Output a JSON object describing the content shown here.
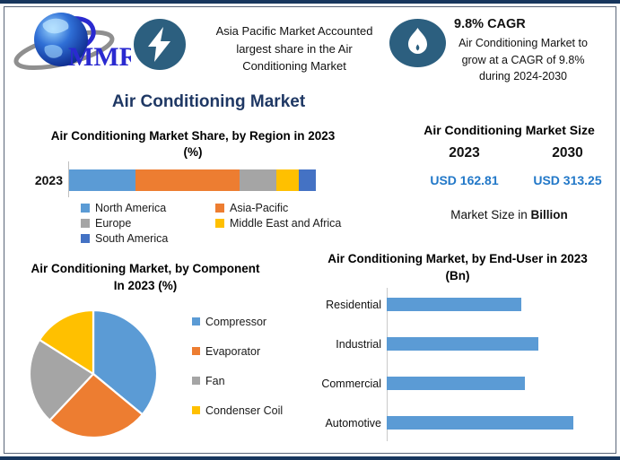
{
  "colors": {
    "border_navy": "#17365D",
    "title_navy": "#1F3864",
    "icon_blue": "#2C5F7F",
    "value_blue": "#2278C8",
    "bar_blue": "#5B9BD5"
  },
  "header": {
    "logo_text": "MMR",
    "asia_note_lines": [
      "Asia Pacific Market Accounted",
      "largest share in the Air",
      "Conditioning Market"
    ],
    "cagr_title": "9.8% CAGR",
    "cagr_lines": [
      "Air Conditioning Market to",
      "grow at a CAGR of 9.8%",
      "during 2024-2030"
    ]
  },
  "main_title": "Air Conditioning Market",
  "market_size": {
    "title": "Air Conditioning Market Size",
    "columns": [
      {
        "year": "2023",
        "value": "USD 162.81"
      },
      {
        "year": "2030",
        "value": "USD 313.25"
      }
    ],
    "note_normal": "Market Size in",
    "note_bold": "Billion"
  },
  "chart_data": [
    {
      "type": "bar",
      "variant": "stacked-horizontal",
      "title": "Air Conditioning Market Share, by Region in 2023 (%)",
      "categories": [
        "2023"
      ],
      "unit": "%",
      "legend_position": "bottom",
      "series": [
        {
          "name": "North America",
          "color": "#5B9BD5",
          "values": [
            27
          ]
        },
        {
          "name": "Asia-Pacific",
          "color": "#ED7D31",
          "values": [
            42
          ]
        },
        {
          "name": "Europe",
          "color": "#A5A5A5",
          "values": [
            15
          ]
        },
        {
          "name": "Middle East and Africa",
          "color": "#FFC000",
          "values": [
            9
          ]
        },
        {
          "name": "South America",
          "color": "#4472C4",
          "values": [
            7
          ]
        }
      ]
    },
    {
      "type": "pie",
      "title": "Air Conditioning Market, by Component In 2023 (%)",
      "labels": [
        "Compressor",
        "Evaporator",
        "Fan",
        "Condenser Coil"
      ],
      "values": [
        36,
        26,
        22,
        16
      ],
      "colors": [
        "#5B9BD5",
        "#ED7D31",
        "#A5A5A5",
        "#FFC000"
      ],
      "legend_position": "right",
      "start_angle_deg": 0,
      "direction": "clockwise"
    },
    {
      "type": "bar",
      "variant": "horizontal",
      "title": "Air Conditioning Market, by End-User in 2023 (Bn)",
      "categories": [
        "Residential",
        "Industrial",
        "Commercial",
        "Automotive"
      ],
      "values_pct_of_max": [
        72,
        81,
        74,
        100
      ],
      "color": "#5B9BD5",
      "axis_labels_shown": false
    }
  ]
}
